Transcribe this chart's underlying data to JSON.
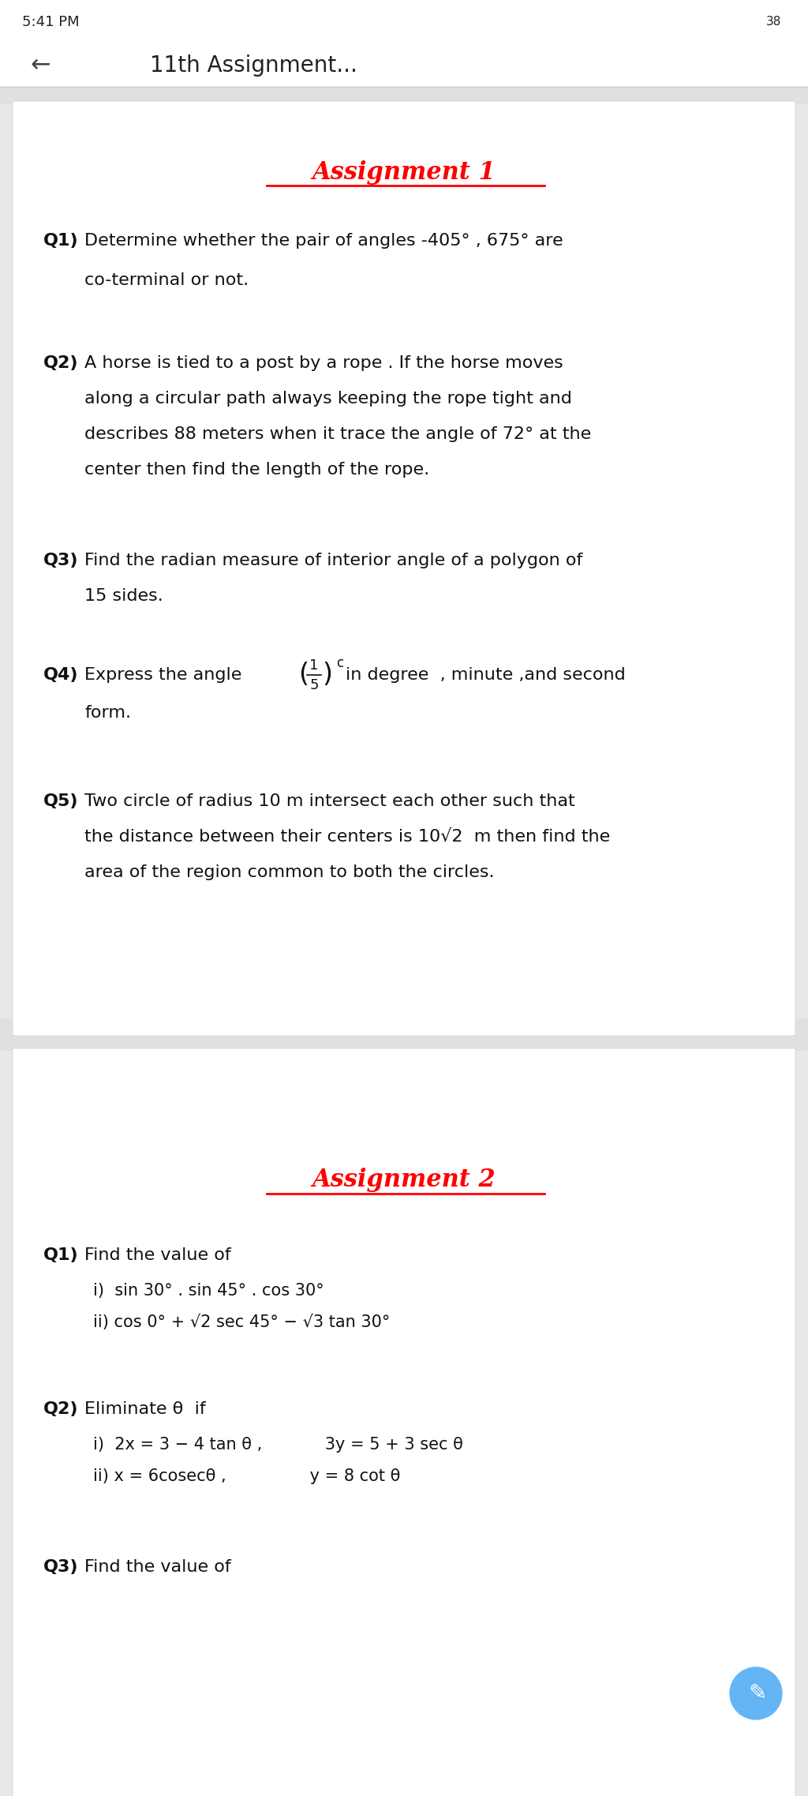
{
  "bg_color": "#e8e8e8",
  "card_color": "#ffffff",
  "status_bar_text": "5:41 PM",
  "nav_bar_title": "11th Assignment...",
  "title1": "Assignment 1",
  "title2": "Assignment 2",
  "title_color": "#ff0000",
  "q1_line1": "Determine whether the pair of angles -405° , 675° are",
  "q1_line2": "co-terminal or not.",
  "q2_line1": "A horse is tied to a post by a rope . If the horse moves",
  "q2_line2": "along a circular path always keeping the rope tight and",
  "q2_line3": "describes 88 meters when it trace the angle of 72° at the",
  "q2_line4": "center then find the length of the rope.",
  "q3_line1": "Find the radian measure of interior angle of a polygon of",
  "q3_line2": "15 sides.",
  "q4_pre": "Express the angle ",
  "q4_post": "in degree  , minute ,and second",
  "q4_line2": "form.",
  "q5_line1": "Two circle of radius 10 m intersect each other such that",
  "q5_line2": "the distance between their centers is 10√2  m then find the",
  "q5_line3": "area of the region common to both the circles.",
  "a2q1_line0": "Find the value of",
  "a2q1_line1": "i)  sin 30° . sin 45° . cos 30°",
  "a2q1_line2": "ii) cos 0° + √2 sec 45° − √3 tan 30°",
  "a2q2_line0": "Eliminate θ  if",
  "a2q2_line1": "i)  2x = 3 − 4 tan θ ,            3y = 5 + 3 sec θ",
  "a2q2_line2": "ii) x = 6cosecθ ,                y = 8 cot θ",
  "a2q3_line0": "Find the value of"
}
